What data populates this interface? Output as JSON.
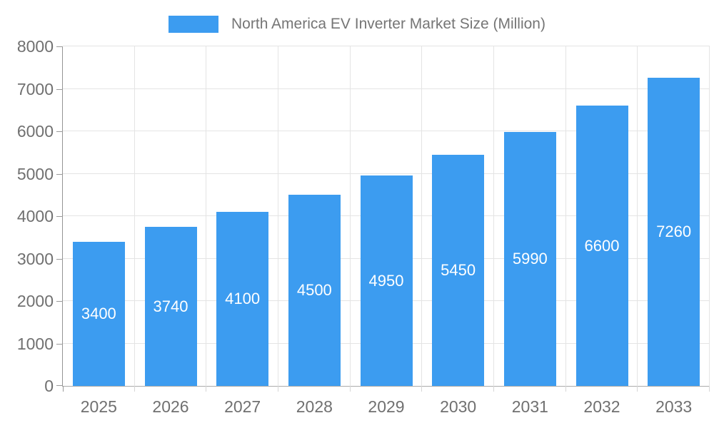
{
  "legend": {
    "label": "North America EV Inverter Market Size (Million)"
  },
  "chart_data": {
    "type": "bar",
    "title": "North America EV Inverter Market Size (Million)",
    "categories": [
      "2025",
      "2026",
      "2027",
      "2028",
      "2029",
      "2030",
      "2031",
      "2032",
      "2033"
    ],
    "values": [
      3400,
      3740,
      4100,
      4500,
      4950,
      5450,
      5990,
      6600,
      7260
    ],
    "xlabel": "",
    "ylabel": "",
    "ylim": [
      0,
      8000
    ],
    "ytick_step": 1000,
    "ytick_labels": [
      "0",
      "1000",
      "2000",
      "3000",
      "4000",
      "5000",
      "6000",
      "7000",
      "8000"
    ],
    "grid": true,
    "legend_position": "top",
    "bar_color": "#3C9CF0",
    "value_label_color": "#FFFFFF",
    "axis_label_color": "#707070",
    "grid_color": "#E4E4E4",
    "axis_line_color": "#9A9A9A"
  }
}
